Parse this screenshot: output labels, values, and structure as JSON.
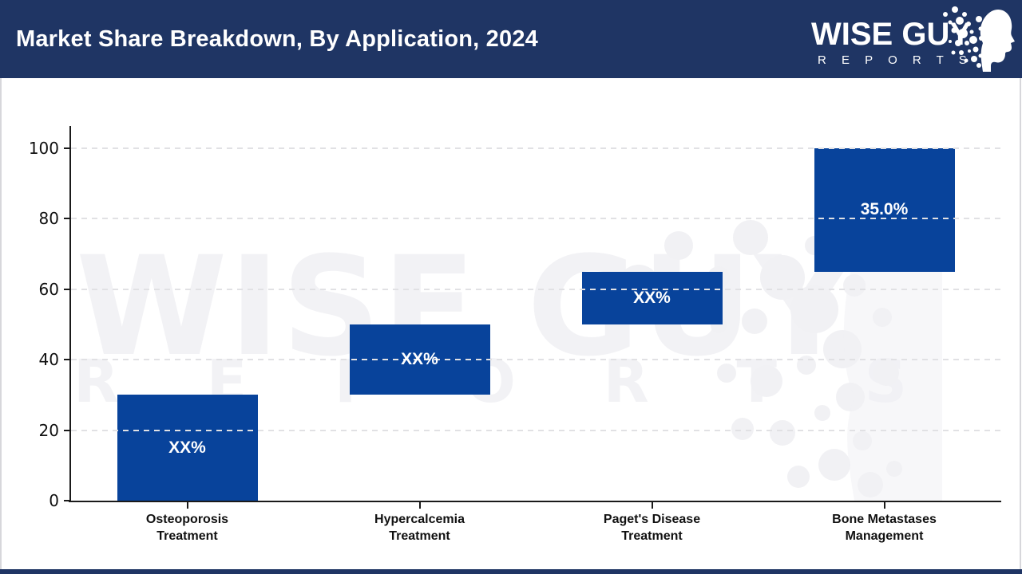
{
  "header": {
    "title": "Market Share Breakdown, By Application, 2024",
    "bg_color": "#1f3564",
    "logo": {
      "line1": "WISE GUY",
      "line2": "R E P O R T S"
    }
  },
  "watermark": {
    "line1": "WISE GUY",
    "line2": "R E P O R T S"
  },
  "chart_data": {
    "type": "bar",
    "subtype": "floating-waterfall",
    "title": "Market Share Breakdown, By Application, 2024",
    "categories": [
      "Osteoporosis\nTreatment",
      "Hypercalcemia\nTreatment",
      "Paget's Disease\nTreatment",
      "Bone Metastases\nManagement"
    ],
    "segments": [
      {
        "category": "Osteoporosis Treatment",
        "start": 0,
        "end": 30,
        "label": "XX%"
      },
      {
        "category": "Hypercalcemia Treatment",
        "start": 30,
        "end": 50,
        "label": "XX%"
      },
      {
        "category": "Paget's Disease Treatment",
        "start": 50,
        "end": 65,
        "label": "XX%"
      },
      {
        "category": "Bone Metastases Management",
        "start": 65,
        "end": 100,
        "label": "35.0%"
      }
    ],
    "xlabel": "",
    "ylabel": "",
    "yticks": [
      0,
      20,
      40,
      60,
      80,
      100
    ],
    "ylim": [
      0,
      107
    ],
    "grid": "horizontal-dashed",
    "grid_color": "#e1e1e4",
    "bar_color": "#08439b",
    "bar_label_color": "#ffffff",
    "legend": "none"
  },
  "footer": {
    "bg_color": "#1f3564"
  }
}
